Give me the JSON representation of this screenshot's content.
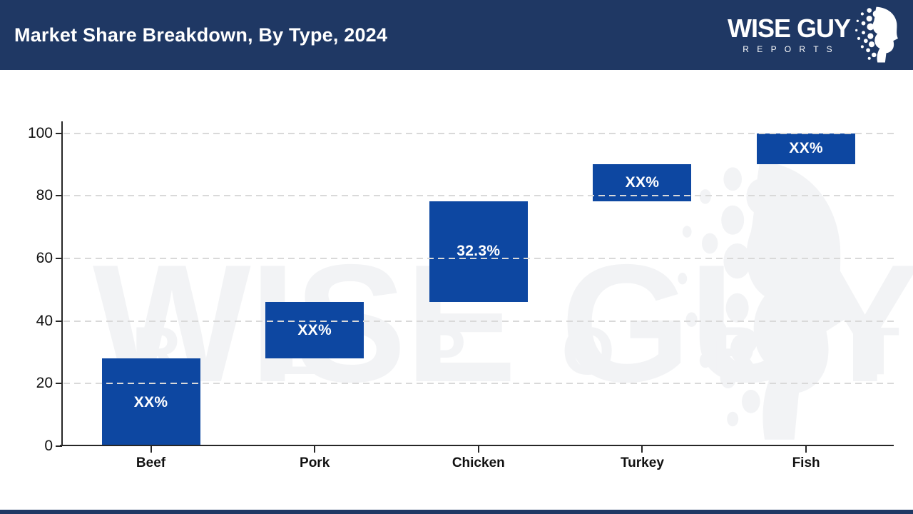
{
  "header": {
    "title": "Market Share Breakdown, By Type, 2024",
    "logo": {
      "brand": "WISE GUY",
      "sub": "R E P O R T S"
    }
  },
  "watermark": {
    "brand": "WISE GUY",
    "sub": "R E P O R T S"
  },
  "chart_data": {
    "type": "bar",
    "subtype": "waterfall",
    "title": "Market Share Breakdown, By Type, 2024",
    "categories": [
      "Beef",
      "Pork",
      "Chicken",
      "Turkey",
      "Fish"
    ],
    "values": [
      28,
      18,
      32.3,
      11.7,
      10
    ],
    "segments": [
      {
        "category": "Beef",
        "start": 0,
        "end": 28,
        "label": "XX%"
      },
      {
        "category": "Pork",
        "start": 28,
        "end": 46,
        "label": "XX%"
      },
      {
        "category": "Chicken",
        "start": 46,
        "end": 78.3,
        "label": "32.3%"
      },
      {
        "category": "Turkey",
        "start": 78.3,
        "end": 90,
        "label": "XX%"
      },
      {
        "category": "Fish",
        "start": 90,
        "end": 100,
        "label": "XX%"
      }
    ],
    "xlabel": "",
    "ylabel": "",
    "ylim": [
      0,
      104
    ],
    "yticks": [
      0,
      20,
      40,
      60,
      80,
      100
    ],
    "grid": "horizontal-dashed",
    "legend": null
  },
  "colors": {
    "header_bg": "#1F3864",
    "footer_bg": "#1F3864",
    "bar": "#0D47A1",
    "bar_label": "#FFFFFF",
    "gridline": "#D9D9D9",
    "axis": "#262626",
    "watermark": "#F2F3F5"
  }
}
